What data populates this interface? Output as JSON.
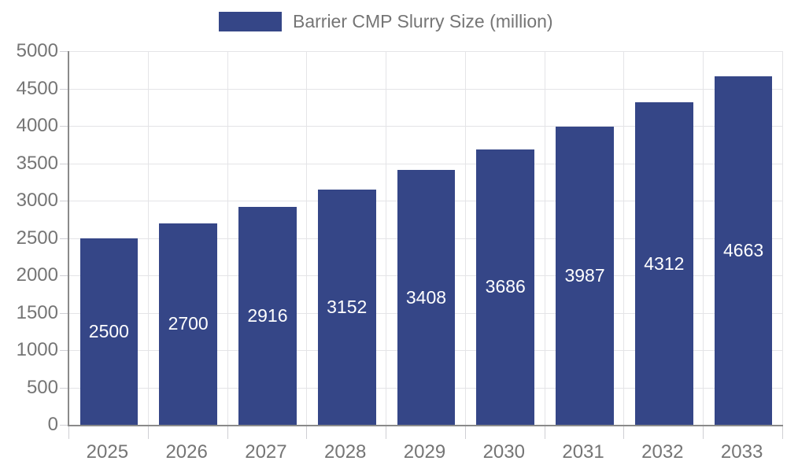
{
  "legend": {
    "label": "Barrier CMP Slurry Size (million)"
  },
  "chart_data": {
    "type": "bar",
    "title": "",
    "xlabel": "",
    "ylabel": "",
    "categories": [
      "2025",
      "2026",
      "2027",
      "2028",
      "2029",
      "2030",
      "2031",
      "2032",
      "2033"
    ],
    "values": [
      2500,
      2700,
      2916,
      3152,
      3408,
      3686,
      3987,
      4312,
      4663
    ],
    "series_name": "Barrier CMP Slurry Size (million)",
    "ylim": [
      0,
      5000
    ],
    "y_ticks": [
      0,
      500,
      1000,
      1500,
      2000,
      2500,
      3000,
      3500,
      4000,
      4500,
      5000
    ],
    "grid": true,
    "legend_position": "top",
    "bar_labels_inside": true
  },
  "colors": {
    "bar": "#354687",
    "grid": "#e4e4e7",
    "axis": "#8a8a8a",
    "tick": "#cfcfd4",
    "tick_label": "#757575",
    "value_label": "#ffffff",
    "background": "#ffffff"
  }
}
